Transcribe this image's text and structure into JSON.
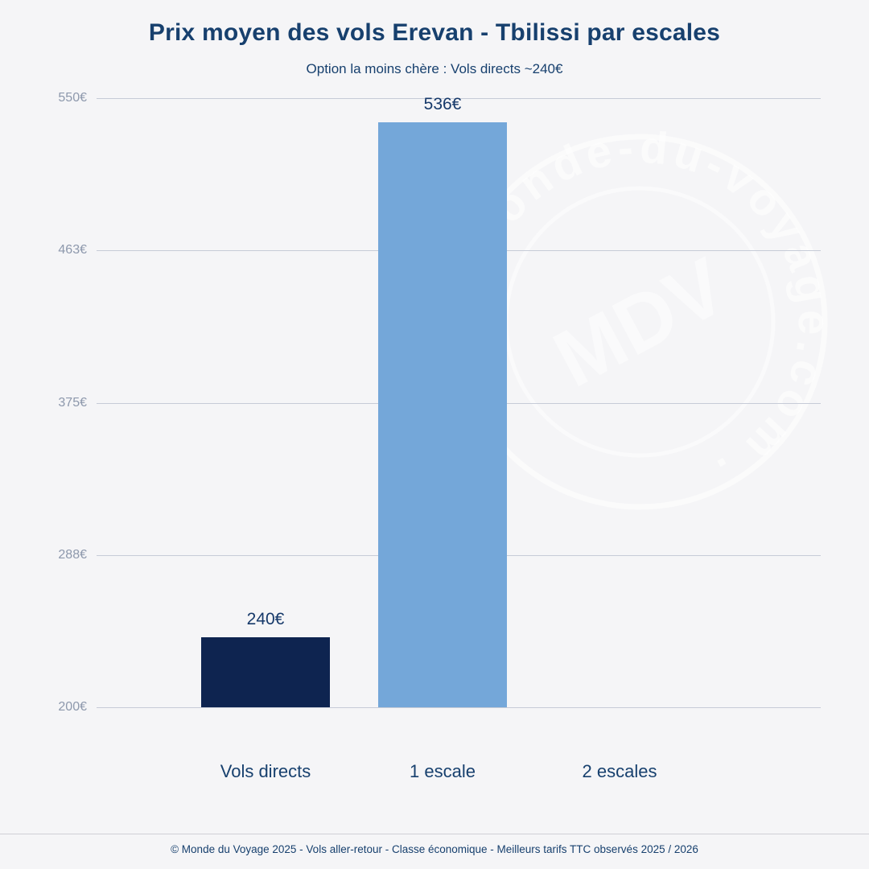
{
  "chart_data": {
    "type": "bar",
    "title": "Prix moyen des vols Erevan - Tbilissi par escales",
    "subtitle": "Option la moins chère : Vols directs ~240€",
    "categories": [
      "Vols directs",
      "1 escale",
      "2 escales"
    ],
    "values": [
      240,
      536,
      null
    ],
    "value_labels": [
      "240€",
      "536€",
      ""
    ],
    "ylim": [
      200,
      550
    ],
    "yticks": [
      550,
      462.5,
      375,
      287.5,
      200
    ],
    "ytick_labels": [
      "550€",
      "463€",
      "375€",
      "288€",
      "200€"
    ],
    "bar_colors": [
      "#0e2450",
      "#74a7d9",
      null
    ],
    "grid": true,
    "legend": "none"
  },
  "watermark": {
    "ring_text": "www.monde-du-voyage.com .",
    "center_text": "MDV"
  },
  "footer": {
    "text": "© Monde du Voyage 2025 - Vols aller-retour - Classe économique - Meilleurs tarifs TTC observés 2025 / 2026"
  },
  "colors": {
    "background": "#f5f5f7",
    "title": "#17406e",
    "gridline": "#c6cbd7",
    "tick_label": "#8d98ac",
    "bar_direct": "#0e2450",
    "bar_one_stop": "#74a7d9"
  }
}
